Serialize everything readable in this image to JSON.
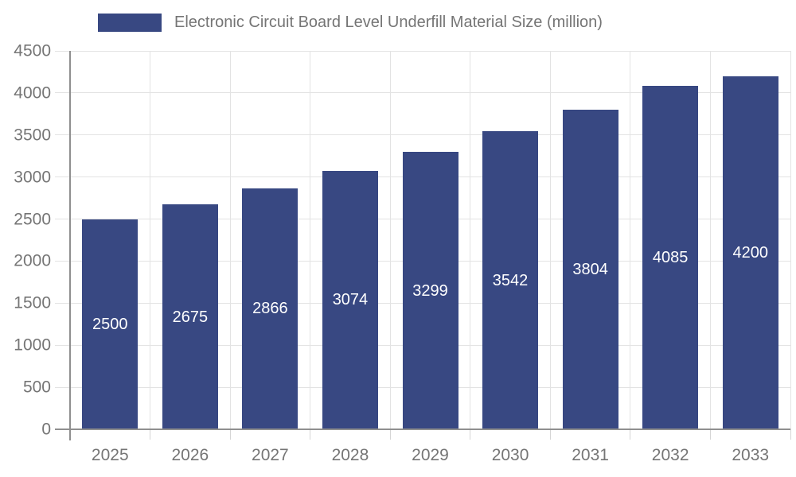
{
  "legend": {
    "label": "Electronic Circuit Board Level Underfill Material Size (million)",
    "swatch_color": "#384882"
  },
  "chart_data": {
    "type": "bar",
    "title": "Electronic Circuit Board Level Underfill Material Size (million)",
    "categories": [
      "2025",
      "2026",
      "2027",
      "2028",
      "2029",
      "2030",
      "2031",
      "2032",
      "2033"
    ],
    "values": [
      2500,
      2675,
      2866,
      3074,
      3299,
      3542,
      3804,
      4085,
      4200
    ],
    "xlabel": "",
    "ylabel": "",
    "ylim": [
      0,
      4500
    ],
    "ytick_step": 500,
    "ytick_labels": [
      "0",
      "500",
      "1000",
      "1500",
      "2000",
      "2500",
      "3000",
      "3500",
      "4000",
      "4500"
    ],
    "grid": true,
    "legend_position": "top",
    "value_labels_inside_bars": true,
    "colors": {
      "bar": "#384882",
      "value_label": "#ffffff",
      "gridline": "#e3e3e3",
      "axis_line": "#8f8f8f",
      "axis_tick": "#d5d5d5",
      "tick_label": "#757575",
      "background": "#ffffff"
    }
  }
}
